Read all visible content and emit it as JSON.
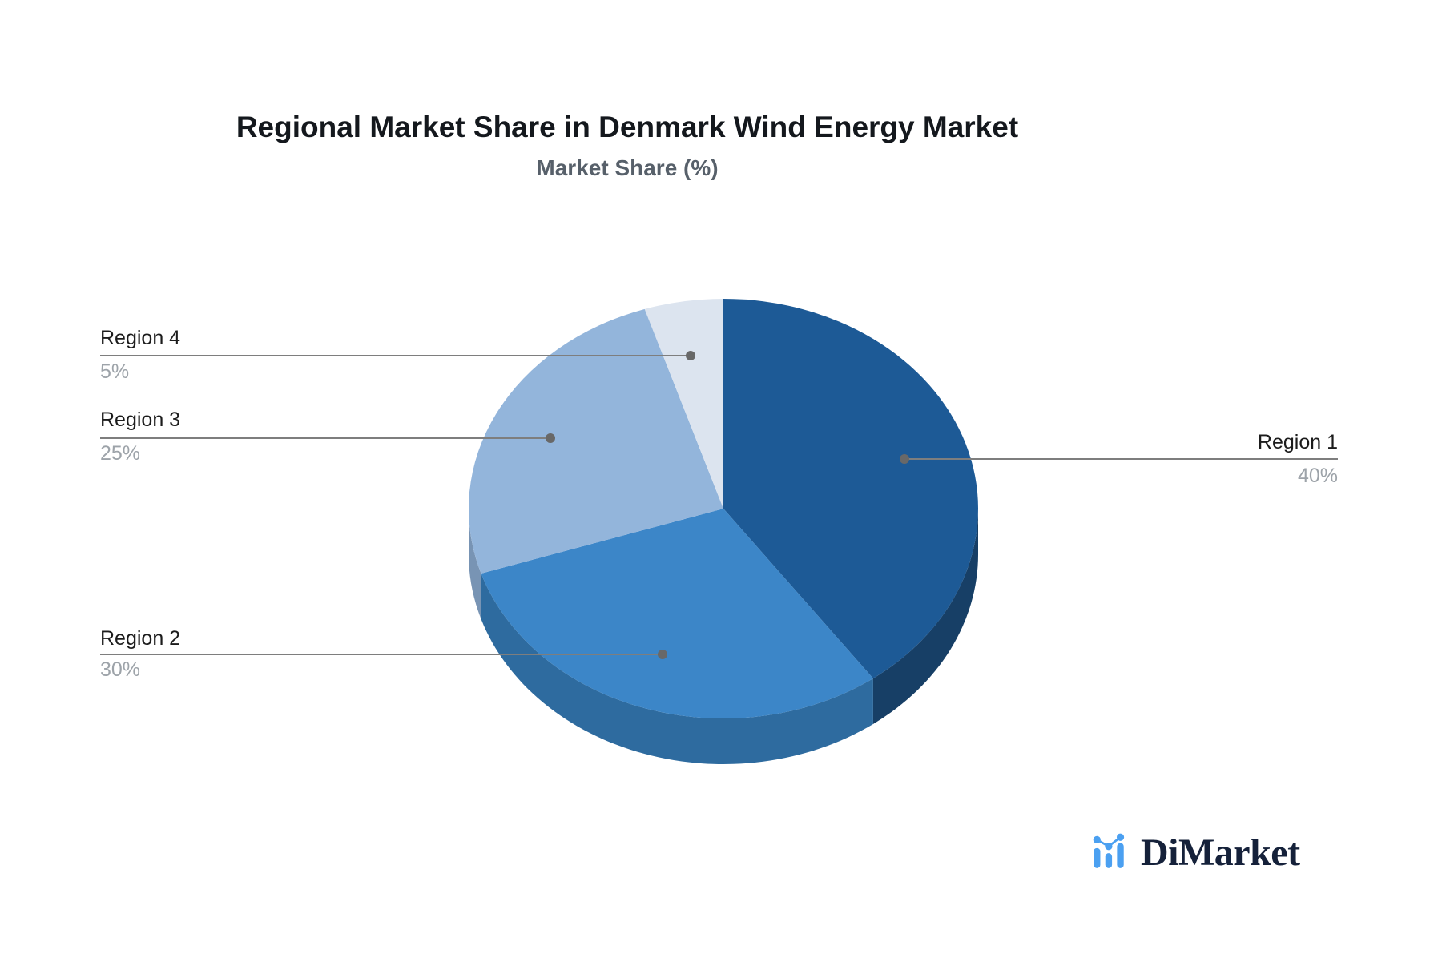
{
  "chart_data": {
    "type": "pie",
    "title": "Regional Market Share in Denmark Wind Energy Market",
    "subtitle": "Market Share (%)",
    "unit": "%",
    "effect": "3d",
    "start_angle_deg": 0,
    "direction": "clockwise",
    "legend_position": "none",
    "labels": "outside-with-leader-lines",
    "slices": [
      {
        "label": "Region 1",
        "value": 40,
        "value_label": "40%",
        "color": "#1D5A96",
        "side_color": "#173F66"
      },
      {
        "label": "Region 2",
        "value": 30,
        "value_label": "30%",
        "color": "#3C86C8",
        "side_color": "#2E6B9F"
      },
      {
        "label": "Region 3",
        "value": 25,
        "value_label": "25%",
        "color": "#93B5DB",
        "side_color": "#7894B4"
      },
      {
        "label": "Region 4",
        "value": 5,
        "value_label": "5%",
        "color": "#DCE4EF",
        "side_color": "#B8C4D6"
      }
    ],
    "leader_line_color": "#7e7e7e",
    "leader_dot_color": "#686868",
    "label_color": "#1c1c1c",
    "value_color": "#9da3a9"
  },
  "branding": {
    "logo_text": "DiMarket",
    "logo_icon": "bar-line-chart-icon",
    "icon_color": "#4BA0F1",
    "text_color": "#15213A"
  }
}
